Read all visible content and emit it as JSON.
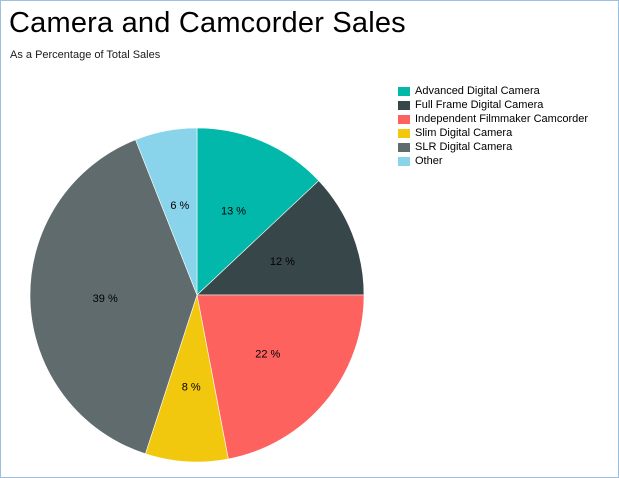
{
  "header": {
    "title": "Camera and Camcorder Sales",
    "subtitle": "As a Percentage of Total Sales"
  },
  "chart_data": {
    "type": "pie",
    "title": "Camera and Camcorder Sales",
    "subtitle": "As a Percentage of Total Sales",
    "legend_position": "top-right",
    "label_format": "{value} %",
    "unit": "percent of total sales",
    "slices": [
      {
        "label": "Advanced Digital Camera",
        "value": 13,
        "color": "#01B8AA"
      },
      {
        "label": "Full Frame Digital Camera",
        "value": 12,
        "color": "#374649"
      },
      {
        "label": "Independent Filmmaker Camcorder",
        "value": 22,
        "color": "#FD625E"
      },
      {
        "label": "Slim Digital Camera",
        "value": 8,
        "color": "#F2C80F"
      },
      {
        "label": "SLR Digital Camera",
        "value": 39,
        "color": "#5F6B6D"
      },
      {
        "label": "Other",
        "value": 6,
        "color": "#8AD4EB"
      }
    ]
  }
}
